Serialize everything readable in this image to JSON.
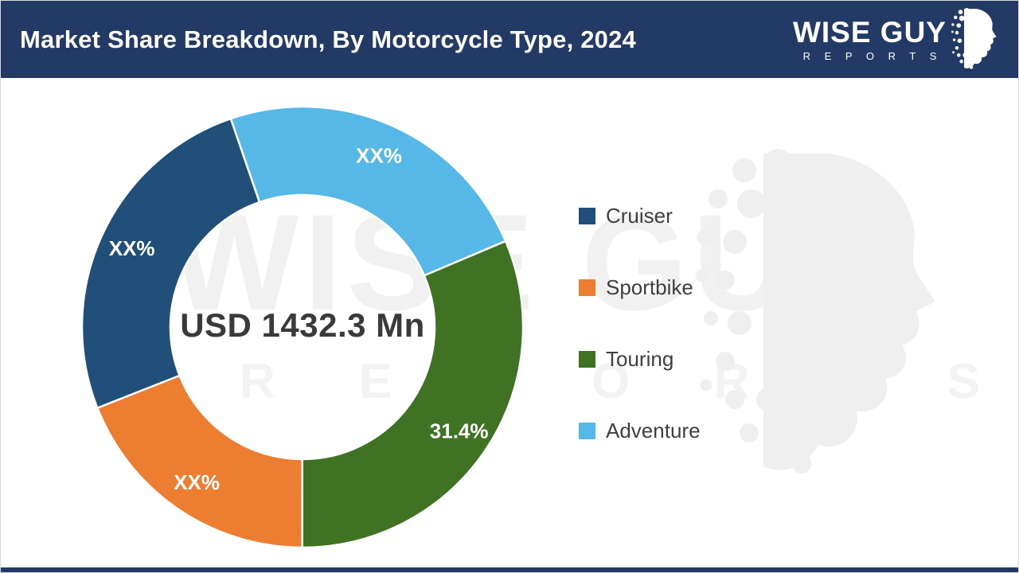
{
  "header": {
    "title": "Market Share Breakdown, By Motorcycle Type, 2024",
    "bg_color": "#233a66",
    "logo": {
      "line1": "WISE GUY",
      "line2": "R E P O R T S"
    }
  },
  "watermark": {
    "line1": "WISE GUY",
    "line2": "R E P O R T S"
  },
  "chart_data": {
    "type": "pie",
    "subtype": "donut",
    "title": "Market Share Breakdown, By Motorcycle Type, 2024",
    "center_label": "USD 1432.3 Mn",
    "legend_position": "right",
    "start_angle_deg": -19,
    "draw_order_clockwise": [
      "Adventure",
      "Touring",
      "Sportbike",
      "Cruiser"
    ],
    "segments": [
      {
        "name": "Cruiser",
        "value_pct": 25.7,
        "label": "XX%",
        "color": "#20507a"
      },
      {
        "name": "Sportbike",
        "value_pct": 19.0,
        "label": "XX%",
        "color": "#ed7d31"
      },
      {
        "name": "Touring",
        "value_pct": 31.4,
        "label": "31.4%",
        "color": "#3f7323"
      },
      {
        "name": "Adventure",
        "value_pct": 23.9,
        "label": "XX%",
        "color": "#55b8e6"
      }
    ]
  },
  "footer": {
    "bar_color": "#233a66"
  }
}
